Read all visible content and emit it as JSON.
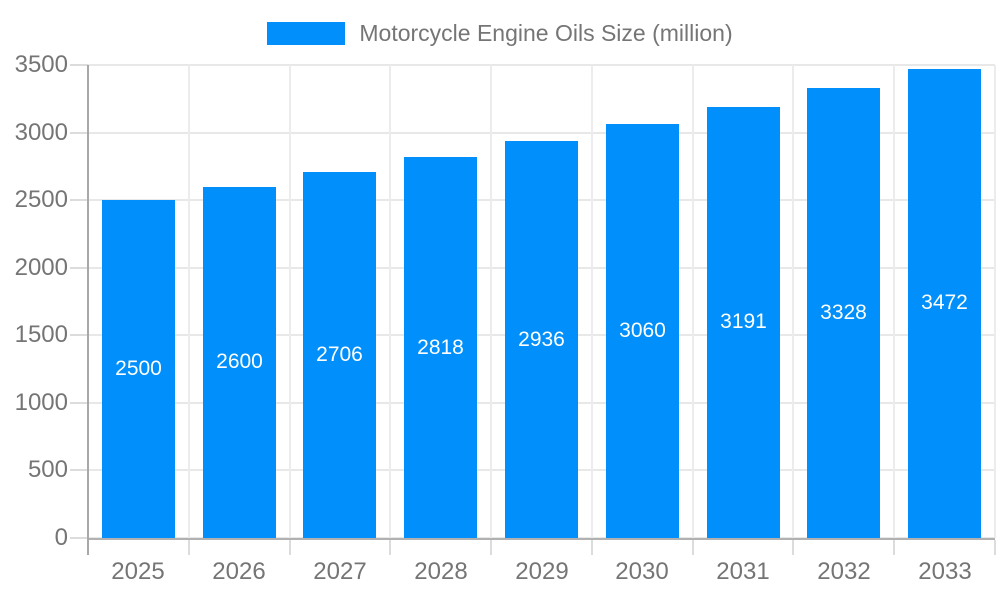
{
  "legend": {
    "label": "Motorcycle Engine Oils Size (million)",
    "swatch_color": "#008FFB"
  },
  "chart_data": {
    "type": "bar",
    "title": "Motorcycle Engine Oils Size (million)",
    "categories": [
      "2025",
      "2026",
      "2027",
      "2028",
      "2029",
      "2030",
      "2031",
      "2032",
      "2033"
    ],
    "series": [
      {
        "name": "Motorcycle Engine Oils Size (million)",
        "values": [
          2500,
          2600,
          2706,
          2818,
          2936,
          3060,
          3191,
          3328,
          3472
        ]
      }
    ],
    "value_labels_shown": true,
    "xlabel": "",
    "ylabel": "",
    "ylim": [
      0,
      3500
    ],
    "yticks": [
      0,
      500,
      1000,
      1500,
      2000,
      2500,
      3000,
      3500
    ],
    "grid": true,
    "legend_position": "top",
    "colors": {
      "bar": "#008FFB",
      "value_label": "#ffffff",
      "tick_label": "#757575",
      "gridline": "#e8e8e8",
      "axis_line": "#b1b1b1"
    }
  }
}
